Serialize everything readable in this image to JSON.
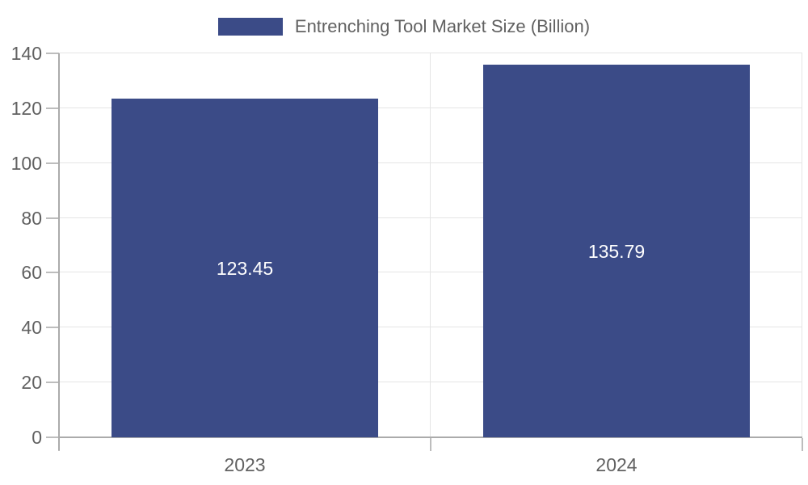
{
  "chart_data": {
    "type": "bar",
    "title": "Entrenching Tool Market Size (Billion)",
    "categories": [
      "2023",
      "2024"
    ],
    "values": [
      123.45,
      135.79
    ],
    "value_labels": [
      "123.45",
      "135.79"
    ],
    "ylim": [
      0,
      140
    ],
    "ytick_step": 20,
    "ytick_labels": [
      "0",
      "20",
      "40",
      "60",
      "80",
      "100",
      "120",
      "140"
    ],
    "xlabel": "",
    "ylabel": "",
    "grid": true,
    "legend_position": "top-center",
    "colors": {
      "bar": "#3B4B87",
      "value_label": "#ffffff",
      "axis": "#ababab",
      "gridline": "#e5e5e5",
      "text": "#616161",
      "background": "#ffffff"
    }
  }
}
